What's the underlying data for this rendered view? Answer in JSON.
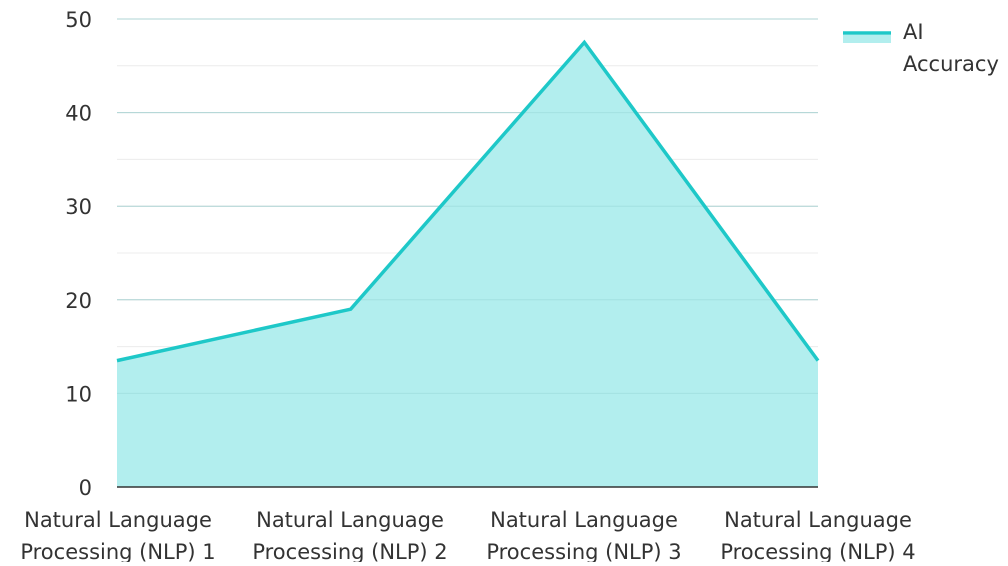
{
  "chart_data": {
    "type": "area",
    "categories": [
      [
        "Natural Language",
        "Processing (NLP) 1"
      ],
      [
        "Natural Language",
        "Processing (NLP) 2"
      ],
      [
        "Natural Language",
        "Processing (NLP) 3"
      ],
      [
        "Natural Language",
        "Processing (NLP) 4"
      ]
    ],
    "series": [
      {
        "name": [
          "AI",
          "Accuracy"
        ],
        "values": [
          13.5,
          19.0,
          47.5,
          13.5
        ]
      }
    ],
    "ylim": [
      0,
      50
    ],
    "yticks": [
      "0",
      "10",
      "20",
      "30",
      "40",
      "50"
    ],
    "grid": true,
    "legend": "top-right",
    "colors": {
      "line": "#1ec8c8",
      "fill": "#b2eeee",
      "grid": "#e0e0e0",
      "axis": "#333333"
    }
  }
}
